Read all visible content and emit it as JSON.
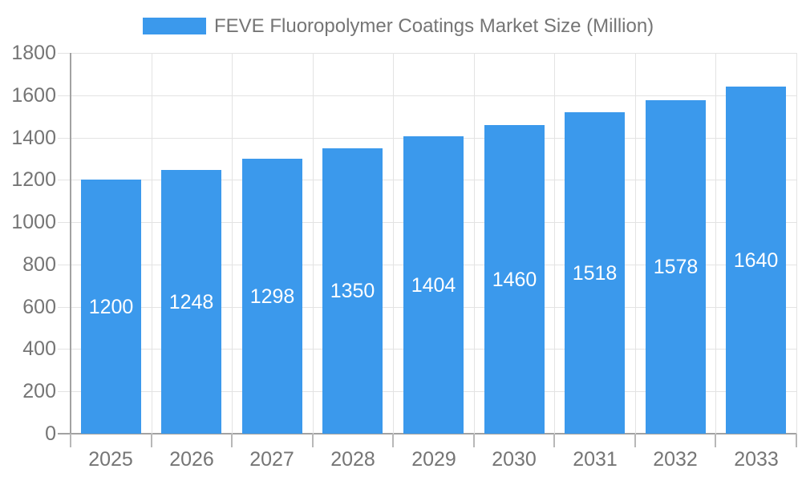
{
  "chart_data": {
    "type": "bar",
    "title": "FEVE Fluoropolymer Coatings Market Size (Million)",
    "legend": {
      "position": "top",
      "entries": [
        "FEVE Fluoropolymer Coatings Market Size (Million)"
      ]
    },
    "categories": [
      "2025",
      "2026",
      "2027",
      "2028",
      "2029",
      "2030",
      "2031",
      "2032",
      "2033"
    ],
    "series": [
      {
        "name": "FEVE Fluoropolymer Coatings Market Size (Million)",
        "values": [
          1200,
          1248,
          1298,
          1350,
          1404,
          1460,
          1518,
          1578,
          1640
        ]
      }
    ],
    "value_labels": [
      1200,
      1248,
      1298,
      1350,
      1404,
      1460,
      1518,
      1578,
      1640
    ],
    "xlabel": "",
    "ylabel": "",
    "ylim": [
      0,
      1800
    ],
    "yticks": [
      0,
      200,
      400,
      600,
      800,
      1000,
      1200,
      1400,
      1600,
      1800
    ],
    "grid": true,
    "colors": {
      "bar": "#3B99EC",
      "axis_text": "#757575",
      "grid_line": "#e3e3e3",
      "axis_line": "#a2a2a2",
      "tick_mark": "#b8b8b8",
      "bar_label_text": "#ffffff",
      "background": "#ffffff"
    }
  }
}
